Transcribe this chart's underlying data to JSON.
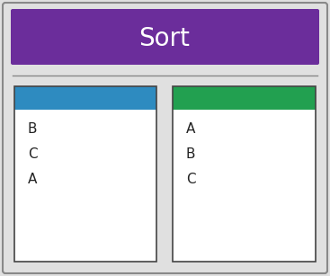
{
  "title": "Sort",
  "title_bg_color": "#6B2D9B",
  "title_text_color": "#FFFFFF",
  "outer_bg_color": "#E0E0E0",
  "outer_border_color": "#888888",
  "separator_color": "#888888",
  "left_header_color": "#2E8BC0",
  "right_header_color": "#22A050",
  "box_bg_color": "#FFFFFF",
  "box_border_color": "#444444",
  "left_items": [
    "B",
    "C",
    "A"
  ],
  "right_items": [
    "A",
    "B",
    "C"
  ],
  "text_color": "#222222",
  "font_size_title": 20,
  "font_size_items": 11
}
